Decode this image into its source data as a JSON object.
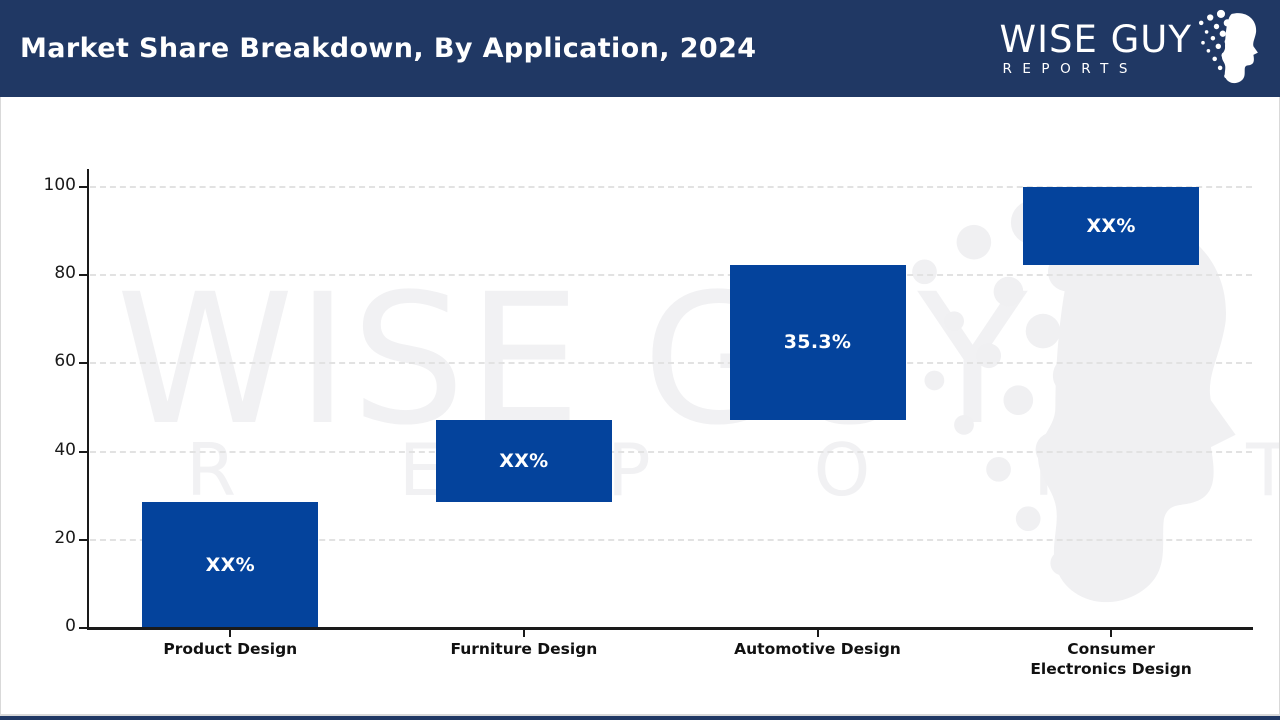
{
  "header": {
    "title": "Market Share Breakdown, By Application, 2024",
    "logo": {
      "line1": "WISE GUY",
      "line2": "REPORTS"
    }
  },
  "watermark": {
    "line1": "WISE GUY",
    "line2": "R E P O R T S"
  },
  "chart_data": {
    "type": "bar",
    "subtype": "waterfall",
    "title": "Market Share Breakdown, By Application, 2024",
    "categories": [
      "Product Design",
      "Furniture Design",
      "Automotive Design",
      "Consumer Electronics Design"
    ],
    "bars": [
      {
        "category": "Product Design",
        "tick_label": "Product Design",
        "start": 0,
        "end": 28.5,
        "label": "XX%"
      },
      {
        "category": "Furniture Design",
        "tick_label": "Furniture Design",
        "start": 28.5,
        "end": 47.1,
        "label": "XX%"
      },
      {
        "category": "Automotive Design",
        "tick_label": "Automotive Design",
        "start": 47.1,
        "end": 82.4,
        "label": "35.3%"
      },
      {
        "category": "Consumer Electronics Design",
        "tick_label": "Consumer\nElectronics Design",
        "start": 82.4,
        "end": 100,
        "label": "XX%"
      }
    ],
    "yticks": [
      0,
      20,
      40,
      60,
      80,
      100
    ],
    "ylim": [
      0,
      105
    ],
    "xlabel": "",
    "ylabel": "",
    "grid": "horizontal-dashed",
    "legend": "none",
    "bar_color": "#04439C",
    "bar_label_color": "#ffffff",
    "axis_color": "#1a1a1a",
    "gridline_color": "#e2e2e2"
  },
  "colors": {
    "header_bg": "#203864",
    "footer_strip": "#203864",
    "watermark": "#f1f1f3",
    "frame_border": "#d9d9d9"
  }
}
